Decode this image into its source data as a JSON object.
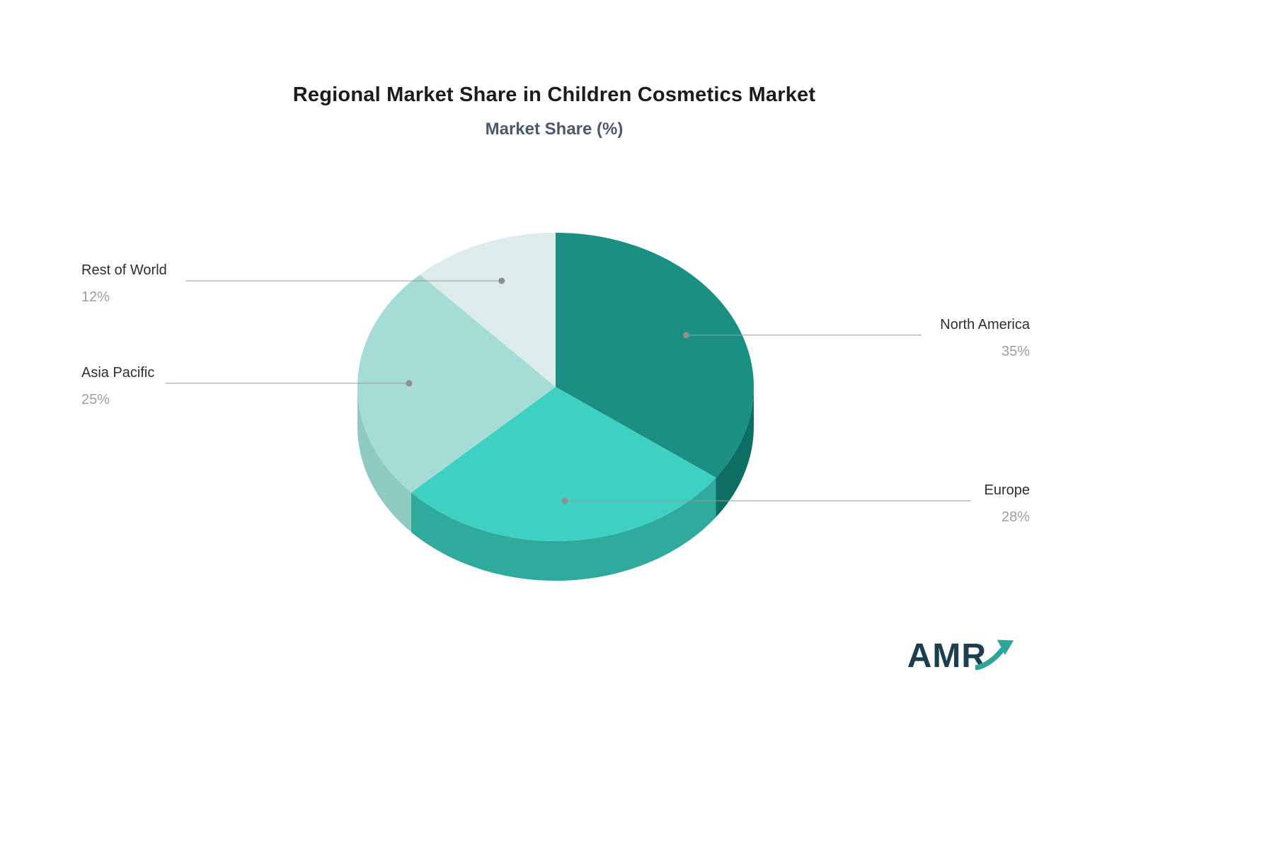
{
  "title": "Regional Market Share in Children Cosmetics Market",
  "subtitle": "Market Share (%)",
  "chart_data": {
    "type": "pie",
    "is_3d": true,
    "unit": "%",
    "start_angle_deg": 0,
    "direction": "clockwise",
    "title": "Regional Market Share in Children Cosmetics Market",
    "subtitle": "Market Share (%)",
    "legend_position": "callout-labels",
    "slices": [
      {
        "label": "North America",
        "value": 35,
        "pct_label": "35%",
        "color": "#1b9082",
        "side_color": "#0f6e63"
      },
      {
        "label": "Europe",
        "value": 28,
        "pct_label": "28%",
        "color": "#3ed0c0",
        "side_color": "#2faa9c"
      },
      {
        "label": "Asia Pacific",
        "value": 25,
        "pct_label": "25%",
        "color": "#a6dcd6",
        "side_color": "#8fcac2"
      },
      {
        "label": "Rest of World",
        "value": 12,
        "pct_label": "12%",
        "color": "#dcecea",
        "side_color": "#c3dcd8"
      }
    ],
    "callout_line_color": "#9b9b9b",
    "callout_dot_color": "#8f8f8f"
  },
  "logo": {
    "text": "AMR"
  }
}
